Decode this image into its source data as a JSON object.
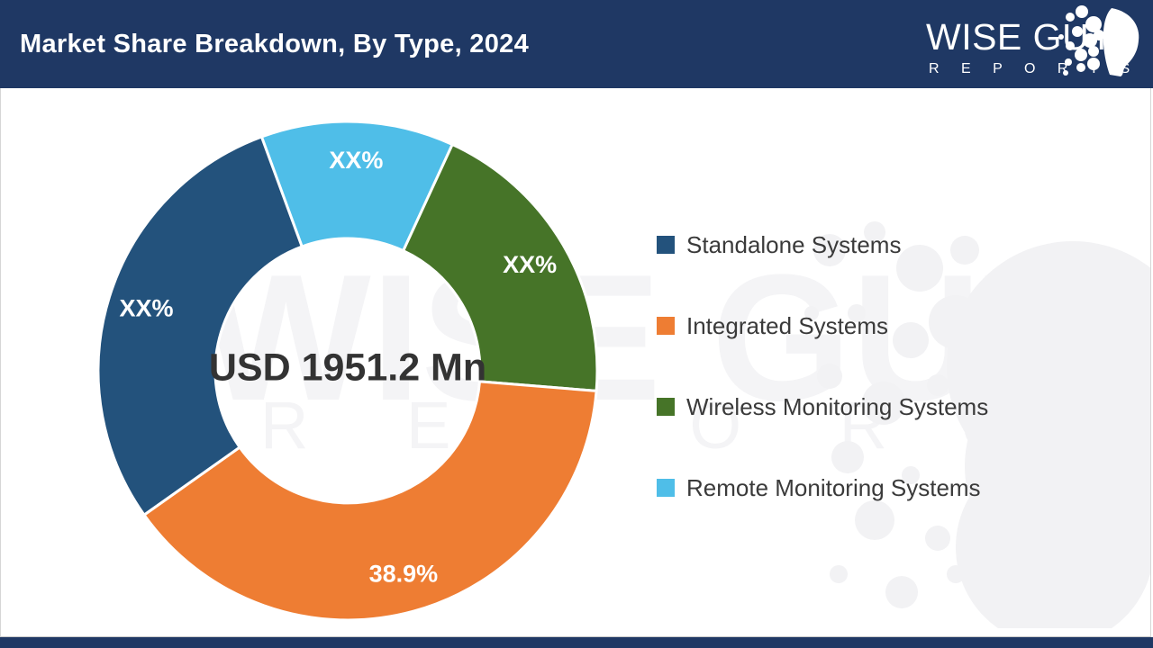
{
  "header": {
    "title": "Market Share Breakdown, By Type, 2024",
    "background_color": "#1F3864",
    "logo": {
      "line1": "WISE GUY",
      "line2": "R E P O R T S"
    }
  },
  "chart_data": {
    "type": "pie",
    "variant": "donut",
    "title": "Market Share Breakdown, By Type, 2024",
    "center_label": "USD 1951.2 Mn",
    "start_angle_deg": -20.2,
    "legend_position": "right",
    "segments": [
      {
        "name": "Remote Monitoring Systems",
        "label": "XX%",
        "value_pct": 12.5,
        "color": "#4FBEE8"
      },
      {
        "name": "Wireless Monitoring Systems",
        "label": "XX%",
        "value_pct": 19.4,
        "color": "#467428"
      },
      {
        "name": "Integrated Systems",
        "label": "38.9%",
        "value_pct": 38.9,
        "color": "#EE7D33"
      },
      {
        "name": "Standalone Systems",
        "label": "XX%",
        "value_pct": 29.2,
        "color": "#23527C"
      }
    ]
  },
  "legend": {
    "items": [
      {
        "label": "Standalone Systems",
        "color": "#23527C"
      },
      {
        "label": "Integrated Systems",
        "color": "#EE7D33"
      },
      {
        "label": "Wireless Monitoring Systems",
        "color": "#467428"
      },
      {
        "label": "Remote Monitoring Systems",
        "color": "#4FBEE8"
      }
    ]
  },
  "watermark": {
    "line1": "WISE GUY",
    "line2": "R E P O R T S"
  }
}
